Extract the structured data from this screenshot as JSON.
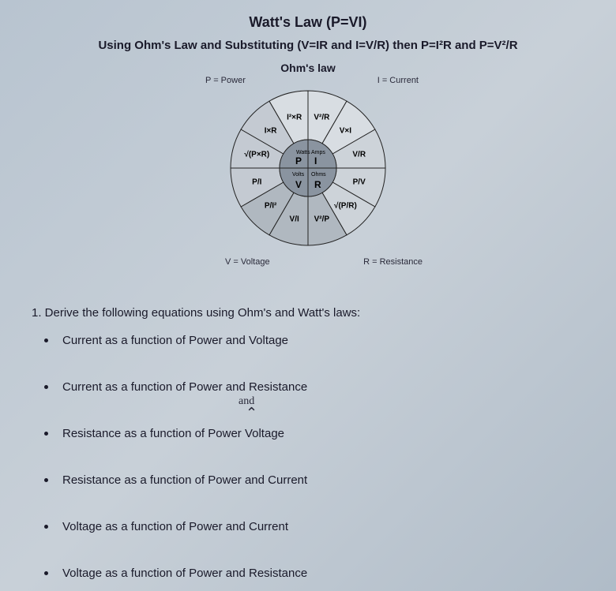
{
  "title": "Watt's Law (P=VI)",
  "subtitle": "Using Ohm's Law and Substituting (V=IR and I=V/R) then P=I²R and P=V²/R",
  "diagram": {
    "heading": "Ohm's law",
    "quadrants": {
      "power": "P = Power",
      "current": "I = Current",
      "voltage": "V = Voltage",
      "resistance": "R = Resistance"
    },
    "center": {
      "w": "Watts",
      "a": "Amps",
      "v": "Volts",
      "o": "Ohms",
      "letters": [
        "P",
        "I",
        "V",
        "R"
      ]
    },
    "sectors": [
      {
        "formula": "V²/R",
        "fill": "#d8dde2"
      },
      {
        "formula": "V×I",
        "fill": "#d8dde2"
      },
      {
        "formula": "V/R",
        "fill": "#cdd3d9"
      },
      {
        "formula": "P/V",
        "fill": "#cdd3d9"
      },
      {
        "formula": "√(P/R)",
        "fill": "#cdd3d9"
      },
      {
        "formula": "V²/P",
        "fill": "#b0b8c0"
      },
      {
        "formula": "V/I",
        "fill": "#b0b8c0"
      },
      {
        "formula": "P/I²",
        "fill": "#b0b8c0"
      },
      {
        "formula": "P/I",
        "fill": "#c4cad2"
      },
      {
        "formula": "√(P×R)",
        "fill": "#c4cad2"
      },
      {
        "formula": "I×R",
        "fill": "#c4cad2"
      },
      {
        "formula": "I²×R",
        "fill": "#d8dde2"
      }
    ],
    "colors": {
      "stroke": "#222",
      "inner_fill": "#8a94a0"
    }
  },
  "handwritten": {
    "text": "and",
    "caret": "⌃"
  },
  "question_heading": "1.  Derive the following equations using Ohm's and Watt's laws:",
  "bullets": [
    "Current as a function of Power and Voltage",
    "Current as a function of Power and Resistance",
    "Resistance as a function of Power Voltage",
    "Resistance as a function of Power and Current",
    "Voltage as a function of Power and Current",
    "Voltage as a function of Power and Resistance"
  ]
}
